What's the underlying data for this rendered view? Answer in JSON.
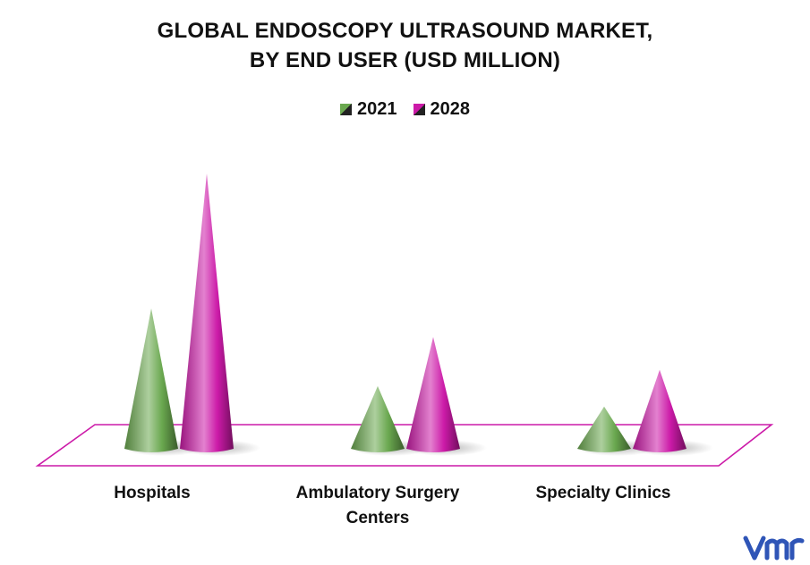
{
  "chart_data": {
    "type": "bar",
    "title_line1": "GLOBAL ENDOSCOPY ULTRASOUND MARKET,",
    "title_line2": "BY END USER (USD MILLION)",
    "categories": [
      "Hospitals",
      "Ambulatory Surgery Centers",
      "Specialty Clinics"
    ],
    "category_lines": [
      [
        "Hospitals"
      ],
      [
        "Ambulatory Surgery",
        "Centers"
      ],
      [
        "Specialty Clinics"
      ]
    ],
    "series": [
      {
        "name": "2021",
        "values": [
          3.5,
          1.6,
          1.1
        ],
        "color": "#6aa84f"
      },
      {
        "name": "2028",
        "values": [
          6.8,
          2.8,
          2.0
        ],
        "color": "#cc1aa8"
      }
    ],
    "ylim": [
      0,
      7
    ],
    "legend": "top-center",
    "grid": false
  },
  "brand": {
    "accent": "#cc1aa8",
    "logo_color": "#2f55b7",
    "logo_icon": "vmr-logo-icon"
  }
}
